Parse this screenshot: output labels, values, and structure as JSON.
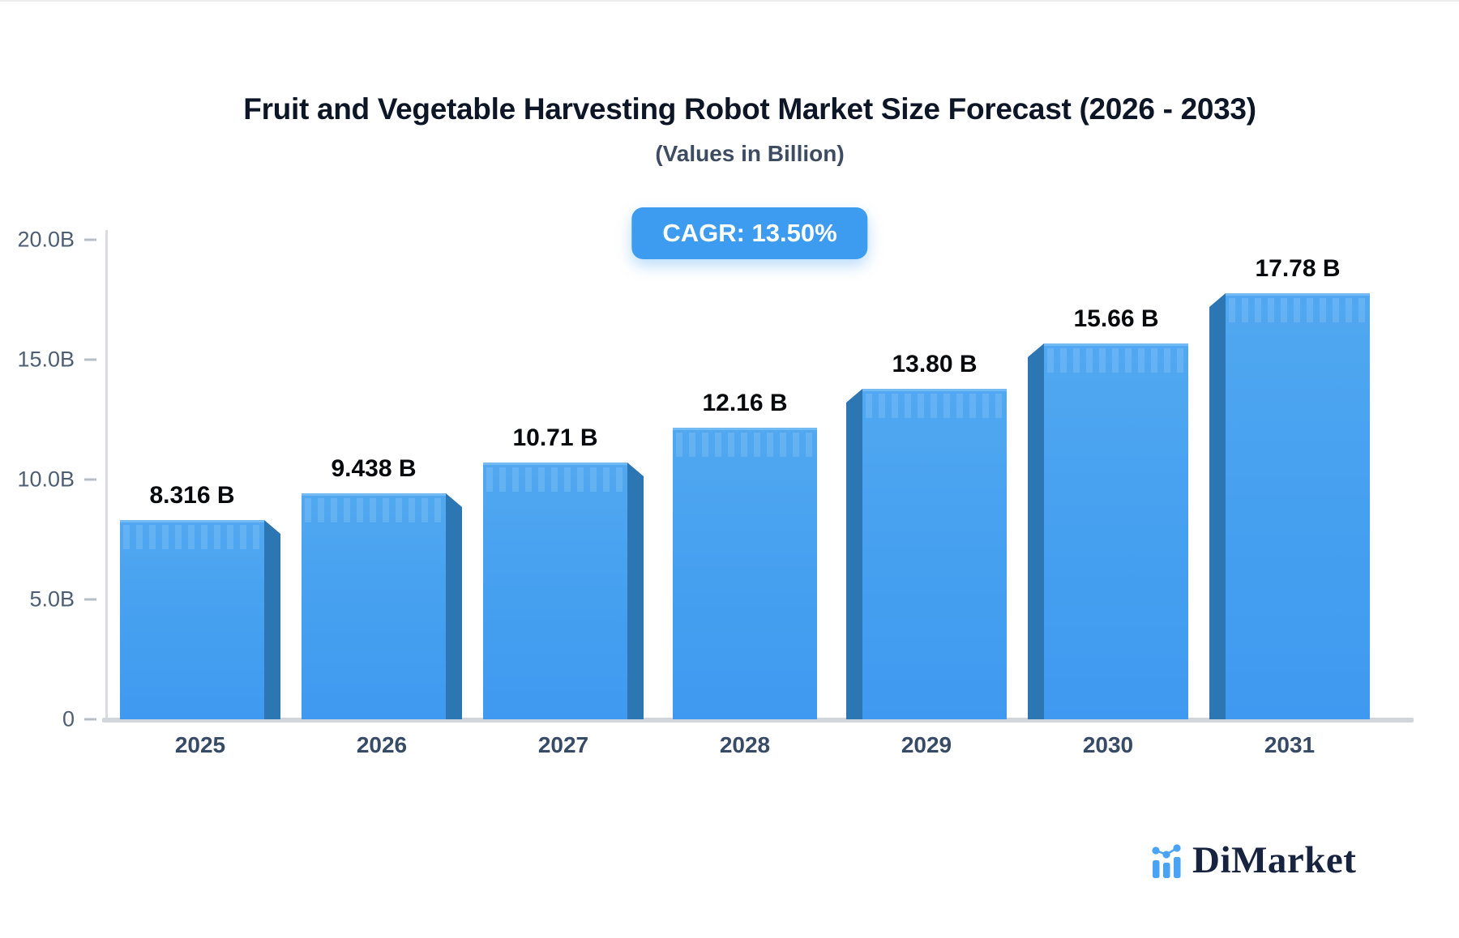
{
  "header": {
    "title": "Fruit and Vegetable Harvesting Robot Market Size Forecast (2026 - 2033)",
    "subtitle": "(Values in Billion)",
    "cagr_label": "CAGR: 13.50%"
  },
  "branding": {
    "name": "DiMarket",
    "icon": "bar-chart-logo-icon"
  },
  "chart_data": {
    "type": "bar",
    "title": "Fruit and Vegetable Harvesting Robot Market Size Forecast (2026 - 2033)",
    "subtitle": "(Values in Billion)",
    "annotation": "CAGR: 13.50%",
    "xlabel": "",
    "ylabel": "",
    "ylim": [
      0,
      20
    ],
    "grid": false,
    "legend": "none",
    "y_ticks": [
      {
        "label": "20.0B",
        "value": 20
      },
      {
        "label": "15.0B",
        "value": 15
      },
      {
        "label": "10.0B",
        "value": 10
      },
      {
        "label": "5.0B",
        "value": 5
      },
      {
        "label": "0",
        "value": 0
      }
    ],
    "bars": [
      {
        "year": "2025",
        "value": 8.316,
        "label": "8.316 B"
      },
      {
        "year": "2026",
        "value": 9.438,
        "label": "9.438 B"
      },
      {
        "year": "2027",
        "value": 10.71,
        "label": "10.71 B"
      },
      {
        "year": "2028",
        "value": 12.16,
        "label": "12.16 B"
      },
      {
        "year": "2029",
        "value": 13.8,
        "label": "13.80 B"
      },
      {
        "year": "2030",
        "value": 15.66,
        "label": "15.66 B"
      },
      {
        "year": "2031",
        "value": 17.78,
        "label": "17.78 B"
      }
    ],
    "colors": {
      "bar_face_top": "#51a8f0",
      "bar_face_bottom": "#3f99f0",
      "bar_side": "#2d76b4",
      "badge_bg": "#3d9cf0",
      "badge_text": "#ffffff",
      "logo_blue": "#4aa3f5",
      "logo_navy": "#18233f"
    }
  }
}
